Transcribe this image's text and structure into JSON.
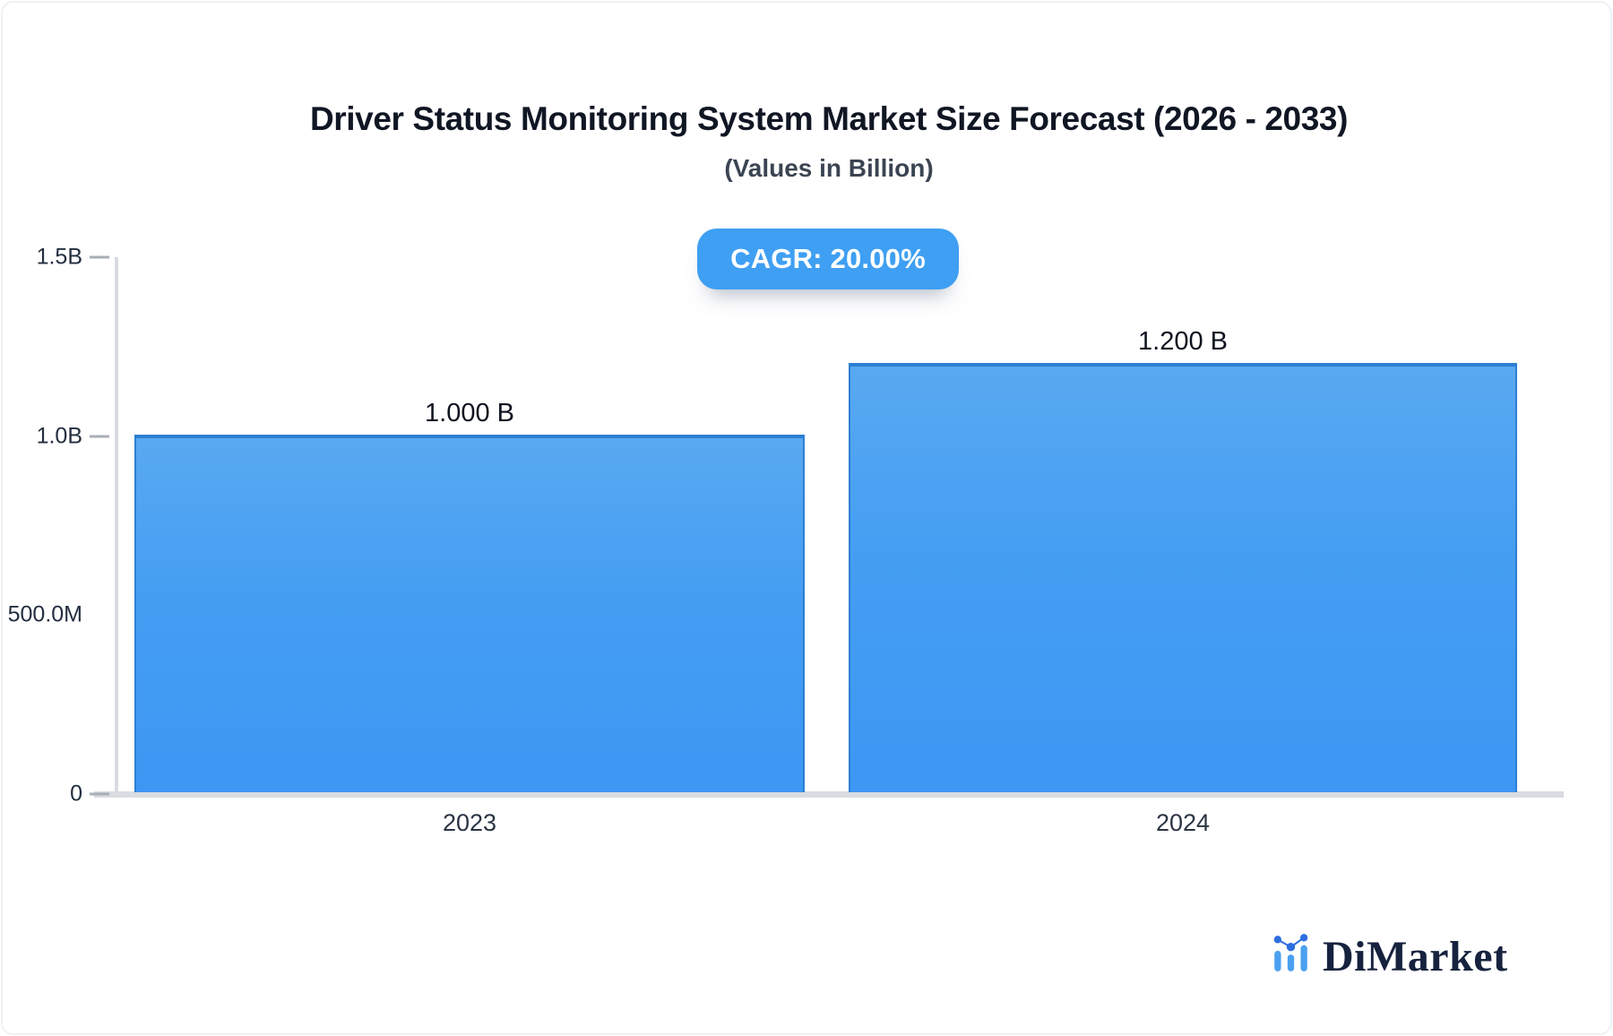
{
  "header": {
    "title": "Driver Status Monitoring System Market Size Forecast (2026 - 2033)",
    "subtitle": "(Values in Billion)"
  },
  "badge": {
    "label": "CAGR: 20.00%"
  },
  "chart_data": {
    "type": "bar",
    "title": "Driver Status Monitoring System Market Size Forecast (2026 - 2033)",
    "subtitle": "(Values in Billion)",
    "cagr_percent": 20.0,
    "categories": [
      "2023",
      "2024"
    ],
    "values": [
      1.0,
      1.2
    ],
    "value_labels": [
      "1.000 B",
      "1.200 B"
    ],
    "value_unit": "Billion",
    "ylim": [
      0,
      1.5
    ],
    "yticks": [
      {
        "label": "1.5B",
        "value": 1.5,
        "dash": true
      },
      {
        "label": "1.0B",
        "value": 1.0,
        "dash": true
      },
      {
        "label": "500.0M",
        "value": 0.5,
        "dash": false
      },
      {
        "label": "0",
        "value": 0.0,
        "dash": true
      }
    ],
    "grid": false,
    "legend_position": "none",
    "colors": {
      "bar_top": "#58a9f1",
      "bar_bottom": "#3d97f3",
      "bar_border": "#2d7fd4",
      "badge_bg": "#3f9ff2",
      "axis": "#d9dce1",
      "tick_text": "#232e3f"
    }
  },
  "logo": {
    "name": "DiMarket",
    "icon": "mini-bar-chart-icon",
    "text_color": "#16223e",
    "icon_bar_color": "#4aa0f0",
    "icon_dot_color": "#2e6fe0"
  }
}
